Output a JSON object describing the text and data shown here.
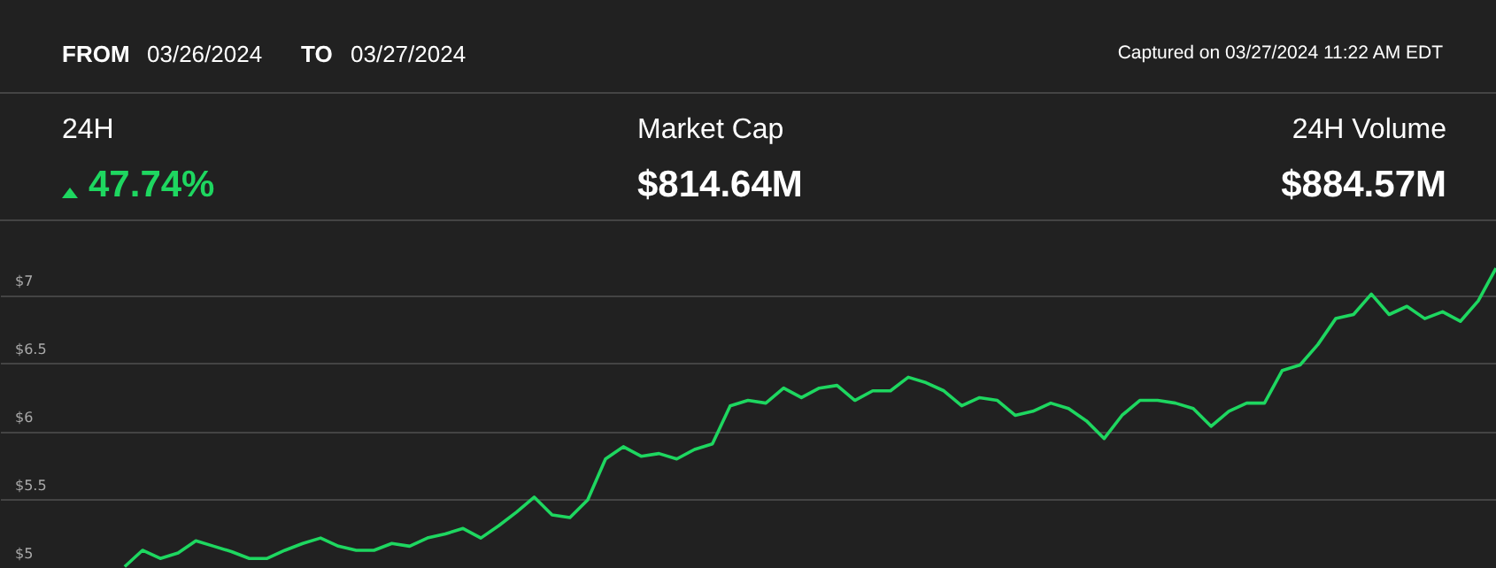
{
  "chart_data": {
    "type": "line",
    "annotations": [
      "FROM",
      "03/26/2024",
      "TO",
      "03/27/2024",
      "Captured on 03/27/2024 11:22 AM EDT",
      "24H",
      "47.74%",
      "Market Cap",
      "$814.64M",
      "24H Volume",
      "$884.57M"
    ],
    "categories": [
      null,
      null,
      null,
      null,
      null,
      null,
      null,
      null,
      null,
      null,
      null,
      null,
      null,
      null,
      null,
      null,
      null,
      null,
      null,
      null,
      null,
      null,
      null,
      null,
      null,
      null,
      null,
      null,
      null,
      null,
      null,
      null,
      null,
      null,
      null,
      null,
      null,
      null,
      null,
      null,
      null,
      null,
      null,
      null,
      null,
      null,
      null,
      null,
      null,
      null,
      null,
      null,
      null,
      null,
      null,
      null,
      null,
      null,
      null,
      null,
      null,
      null,
      null,
      null,
      null,
      null,
      null,
      null,
      null,
      null,
      null,
      null,
      null,
      null,
      null,
      null,
      null,
      null,
      null,
      null,
      null,
      null,
      null,
      null,
      null
    ],
    "series": [
      {
        "color": "#1ed760",
        "values": [
          null,
          null,
          null,
          null,
          null,
          null,
          null,
          5.01,
          5.13,
          5.07,
          5.11,
          5.2,
          5.16,
          5.12,
          5.07,
          5.07,
          5.13,
          5.18,
          5.22,
          5.16,
          5.13,
          5.13,
          5.18,
          5.16,
          5.22,
          5.25,
          5.29,
          5.22,
          5.31,
          5.41,
          5.52,
          5.39,
          5.37,
          5.5,
          5.8,
          5.89,
          5.82,
          5.84,
          5.8,
          5.87,
          5.91,
          6.19,
          6.23,
          6.21,
          6.32,
          6.25,
          6.32,
          6.34,
          6.23,
          6.3,
          6.3,
          6.4,
          6.36,
          6.3,
          6.19,
          6.25,
          6.23,
          6.12,
          6.15,
          6.21,
          6.17,
          6.08,
          5.95,
          6.12,
          6.23,
          6.23,
          6.21,
          6.17,
          6.04,
          6.15,
          6.21,
          6.21,
          6.45,
          6.49,
          6.64,
          6.83,
          6.86,
          7.01,
          6.86,
          6.92,
          6.83,
          6.88,
          6.81,
          6.96,
          7.2
        ]
      }
    ],
    "ylim": [
      5.0,
      7.48
    ],
    "yticks": [
      {
        "value": 5,
        "label": "$5"
      },
      {
        "value": 5.5,
        "label": "$5.5"
      },
      {
        "value": 6,
        "label": "$6"
      },
      {
        "value": 6.5,
        "label": "$6.5"
      },
      {
        "value": 7,
        "label": "$7"
      }
    ],
    "grid": true,
    "tick_labels": "y",
    "marker": "none",
    "line_style": "solid"
  }
}
